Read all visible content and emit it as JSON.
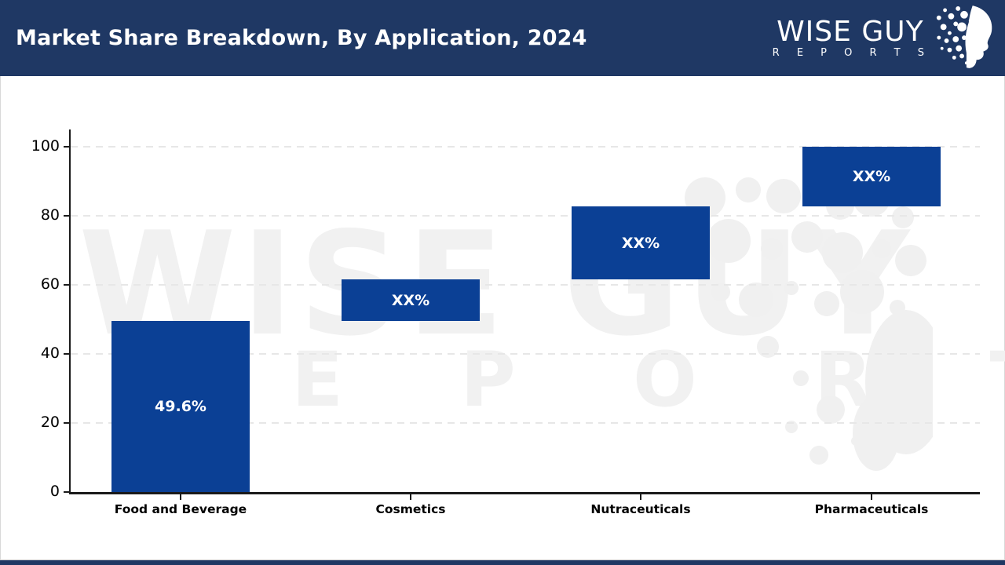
{
  "header": {
    "title": "Market Share Breakdown, By Application, 2024",
    "logo": {
      "line1": "WISE GUY",
      "line2": "R E P O R T S"
    }
  },
  "watermark": {
    "line1": "WISE GUY",
    "line2": "R E P O R T S"
  },
  "colors": {
    "header_bg": "#1f3864",
    "footer_bg": "#1f3864",
    "bar": "#0b4095",
    "bar_label": "#ffffff",
    "gridline": "#e7e7e7",
    "watermark": "#f1f1f1",
    "axis": "#1a1a1a"
  },
  "chart_data": {
    "type": "bar",
    "subtype": "waterfall",
    "title": "Market Share Breakdown, By Application, 2024",
    "categories": [
      "Food and Beverage",
      "Cosmetics",
      "Nutraceuticals",
      "Pharmaceuticals"
    ],
    "series": [
      {
        "name": "Market share (cumulative segments)",
        "segments": [
          {
            "category": "Food and Beverage",
            "start": 0,
            "end": 49.6,
            "label": "49.6%"
          },
          {
            "category": "Cosmetics",
            "start": 49.6,
            "end": 61.5,
            "label": "XX%"
          },
          {
            "category": "Nutraceuticals",
            "start": 61.5,
            "end": 82.7,
            "label": "XX%"
          },
          {
            "category": "Pharmaceuticals",
            "start": 82.7,
            "end": 100,
            "label": "XX%"
          }
        ]
      }
    ],
    "xlabel": "",
    "ylabel": "",
    "yticks": [
      0,
      20,
      40,
      60,
      80,
      100
    ],
    "ylim": [
      0,
      105
    ],
    "grid": "horizontal-dashed",
    "legend_position": "none"
  }
}
